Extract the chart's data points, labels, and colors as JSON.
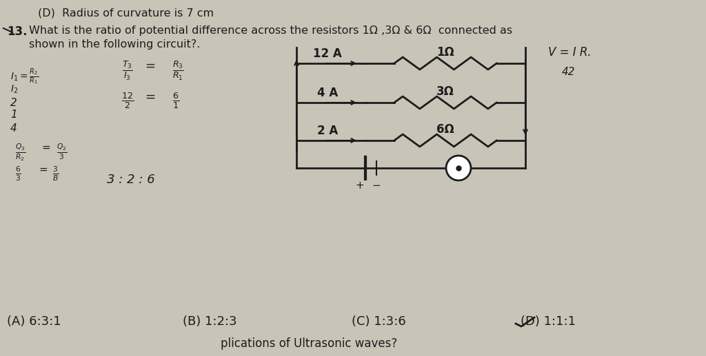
{
  "bg_color": "#c9c4b8",
  "title_line1": "(D)  Radius of curvature is 7 cm",
  "question_number": "13.",
  "question_line1": "What is the ratio of potential difference across the resistors 1Ω ,3Ω & 6Ω  connected as",
  "question_line2": "shown in the following circuit?.",
  "circuit_branches": [
    {
      "current": "12 A",
      "resistance": "1Ω"
    },
    {
      "current": "4 A",
      "resistance": "3Ω"
    },
    {
      "current": "2 A",
      "resistance": "6Ω"
    }
  ],
  "right_notes": [
    "V = I R.",
    "42"
  ],
  "answers": [
    {
      "label": "(A)",
      "value": "6:3:1",
      "bold": false,
      "check": false
    },
    {
      "label": "(B)",
      "value": "1:2:3",
      "bold": false,
      "check": false
    },
    {
      "label": "(C)",
      "value": "1:3:6",
      "bold": false,
      "check": false
    },
    {
      "label": "(D)",
      "value": "1:1:1",
      "bold": false,
      "check": true
    }
  ],
  "bottom_text": "plications of Ultrasonic waves?",
  "text_color": "#1c1c1c",
  "line_color": "#1c1c1c"
}
